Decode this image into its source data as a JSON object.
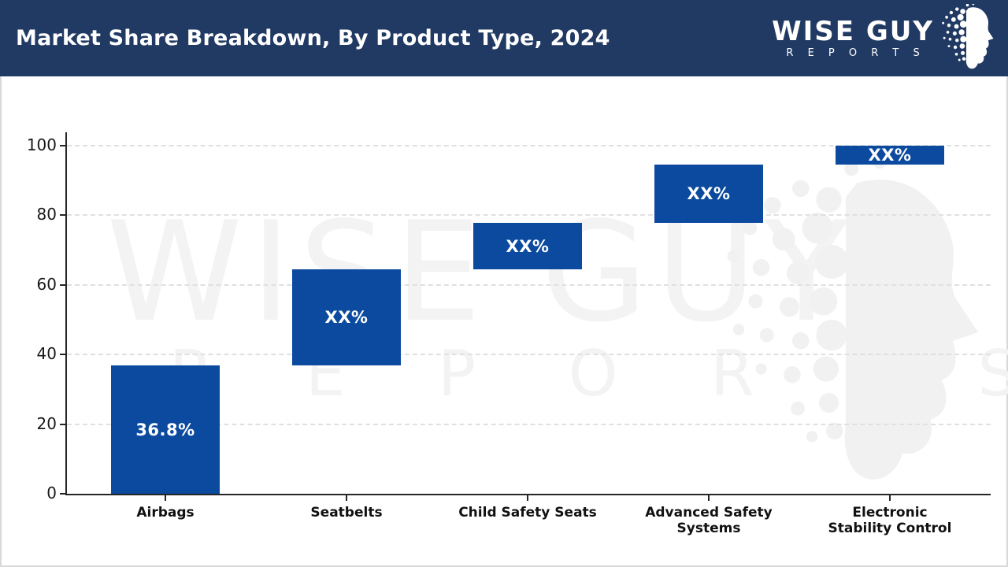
{
  "header": {
    "title": "Market Share Breakdown, By Product Type, 2024",
    "brand": {
      "line1": "WISE GUY",
      "line2": "R E P O R T S"
    }
  },
  "watermark": {
    "line1": "WISE GUY",
    "line2": "R E P O R T S"
  },
  "colors": {
    "header_bg": "#213a64",
    "bar_blue": "#0b4a9e",
    "bar_label_text": "#ffffff",
    "axis": "#262626",
    "gridline": "#e0e0e0",
    "tick_text": "#1a1a1a",
    "category_text": "#111111",
    "watermark": "#f3f3f3",
    "frame_border": "#d9d9d9"
  },
  "chart_data": {
    "type": "bar",
    "subtype": "waterfall",
    "title": "Market Share Breakdown, By Product Type, 2024",
    "categories": [
      "Airbags",
      "Seatbelts",
      "Child Safety Seats",
      "Advanced Safety Systems",
      "Electronic Stability Control"
    ],
    "tick_label_lines": [
      [
        "Airbags"
      ],
      [
        "Seatbelts"
      ],
      [
        "Child Safety Seats"
      ],
      [
        "Advanced Safety",
        "Systems"
      ],
      [
        "Electronic",
        "Stability Control"
      ]
    ],
    "segments": [
      {
        "category": "Airbags",
        "start": 0,
        "end": 36.8,
        "value_label": "36.8%"
      },
      {
        "category": "Seatbelts",
        "start": 36.8,
        "end": 64.5,
        "value_label": "XX%"
      },
      {
        "category": "Child Safety Seats",
        "start": 64.5,
        "end": 77.8,
        "value_label": "XX%"
      },
      {
        "category": "Advanced Safety Systems",
        "start": 77.8,
        "end": 94.6,
        "value_label": "XX%"
      },
      {
        "category": "Electronic Stability Control",
        "start": 94.6,
        "end": 100,
        "value_label": "XX%"
      }
    ],
    "yticks": [
      0,
      20,
      40,
      60,
      80,
      100
    ],
    "ylim": [
      0,
      104
    ],
    "xlabel": "",
    "ylabel": "",
    "grid": "horizontal-dashed",
    "legend": "none"
  }
}
